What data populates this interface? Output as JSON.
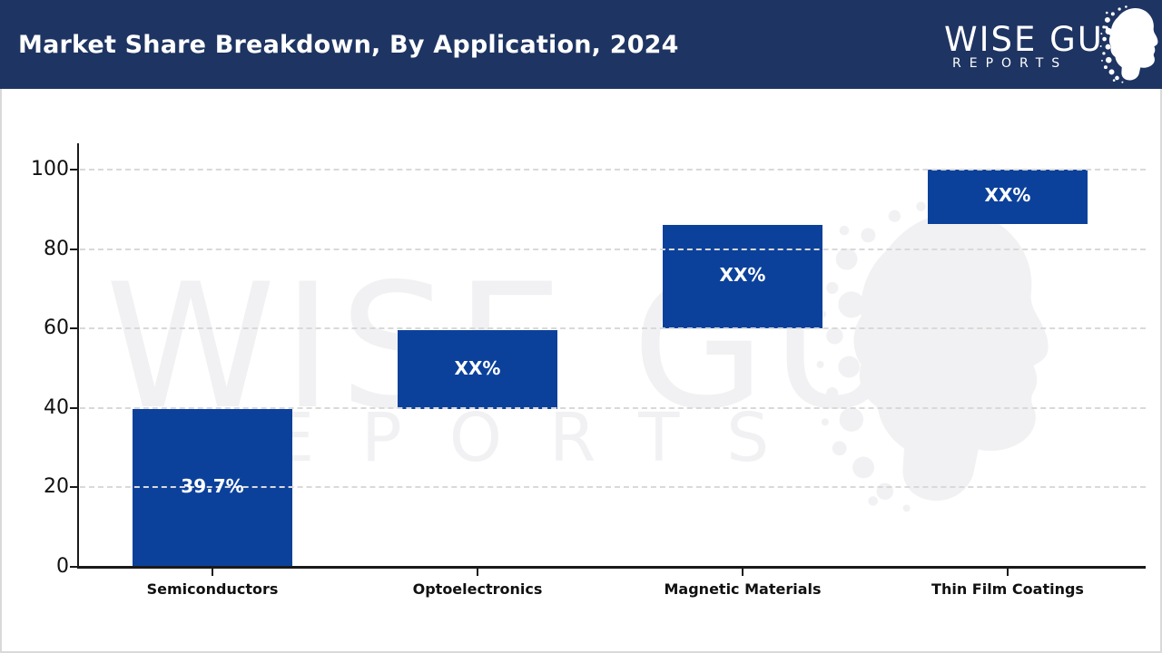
{
  "header": {
    "title": "Market Share Breakdown, By Application, 2024",
    "logo": {
      "brand": "WISE GUY",
      "sub": "REPORTS"
    }
  },
  "watermark": {
    "line1": "WISE GUY",
    "line2": "REPORTS"
  },
  "chart_data": {
    "type": "bar",
    "subtype": "waterfall-floating-bars",
    "title": "Market Share Breakdown, By Application, 2024",
    "categories": [
      "Semiconductors",
      "Optoelectronics",
      "Magnetic Materials",
      "Thin Film Coatings"
    ],
    "bars": [
      {
        "category": "Semiconductors",
        "start": 0,
        "end": 39.7,
        "label": "39.7%"
      },
      {
        "category": "Optoelectronics",
        "start": 39.7,
        "end": 59.6,
        "label": "XX%"
      },
      {
        "category": "Magnetic Materials",
        "start": 60.0,
        "end": 86.0,
        "label": "XX%"
      },
      {
        "category": "Thin Film Coatings",
        "start": 86.3,
        "end": 100.0,
        "label": "XX%"
      }
    ],
    "ylim": [
      0,
      105
    ],
    "yticks": [
      0,
      20,
      40,
      60,
      80,
      100
    ],
    "xlabel": "",
    "ylabel": "",
    "grid": "horizontal-dashed",
    "legend": "none",
    "colors": {
      "bar": "#0c419b",
      "bar_label": "#ffffff",
      "axis": "#1a1a1a",
      "gridline": "#d9d9d9",
      "header_bg": "#1e3462",
      "header_text": "#ffffff",
      "watermark": "#f1f1f3",
      "border": "#d9d9d9"
    }
  }
}
